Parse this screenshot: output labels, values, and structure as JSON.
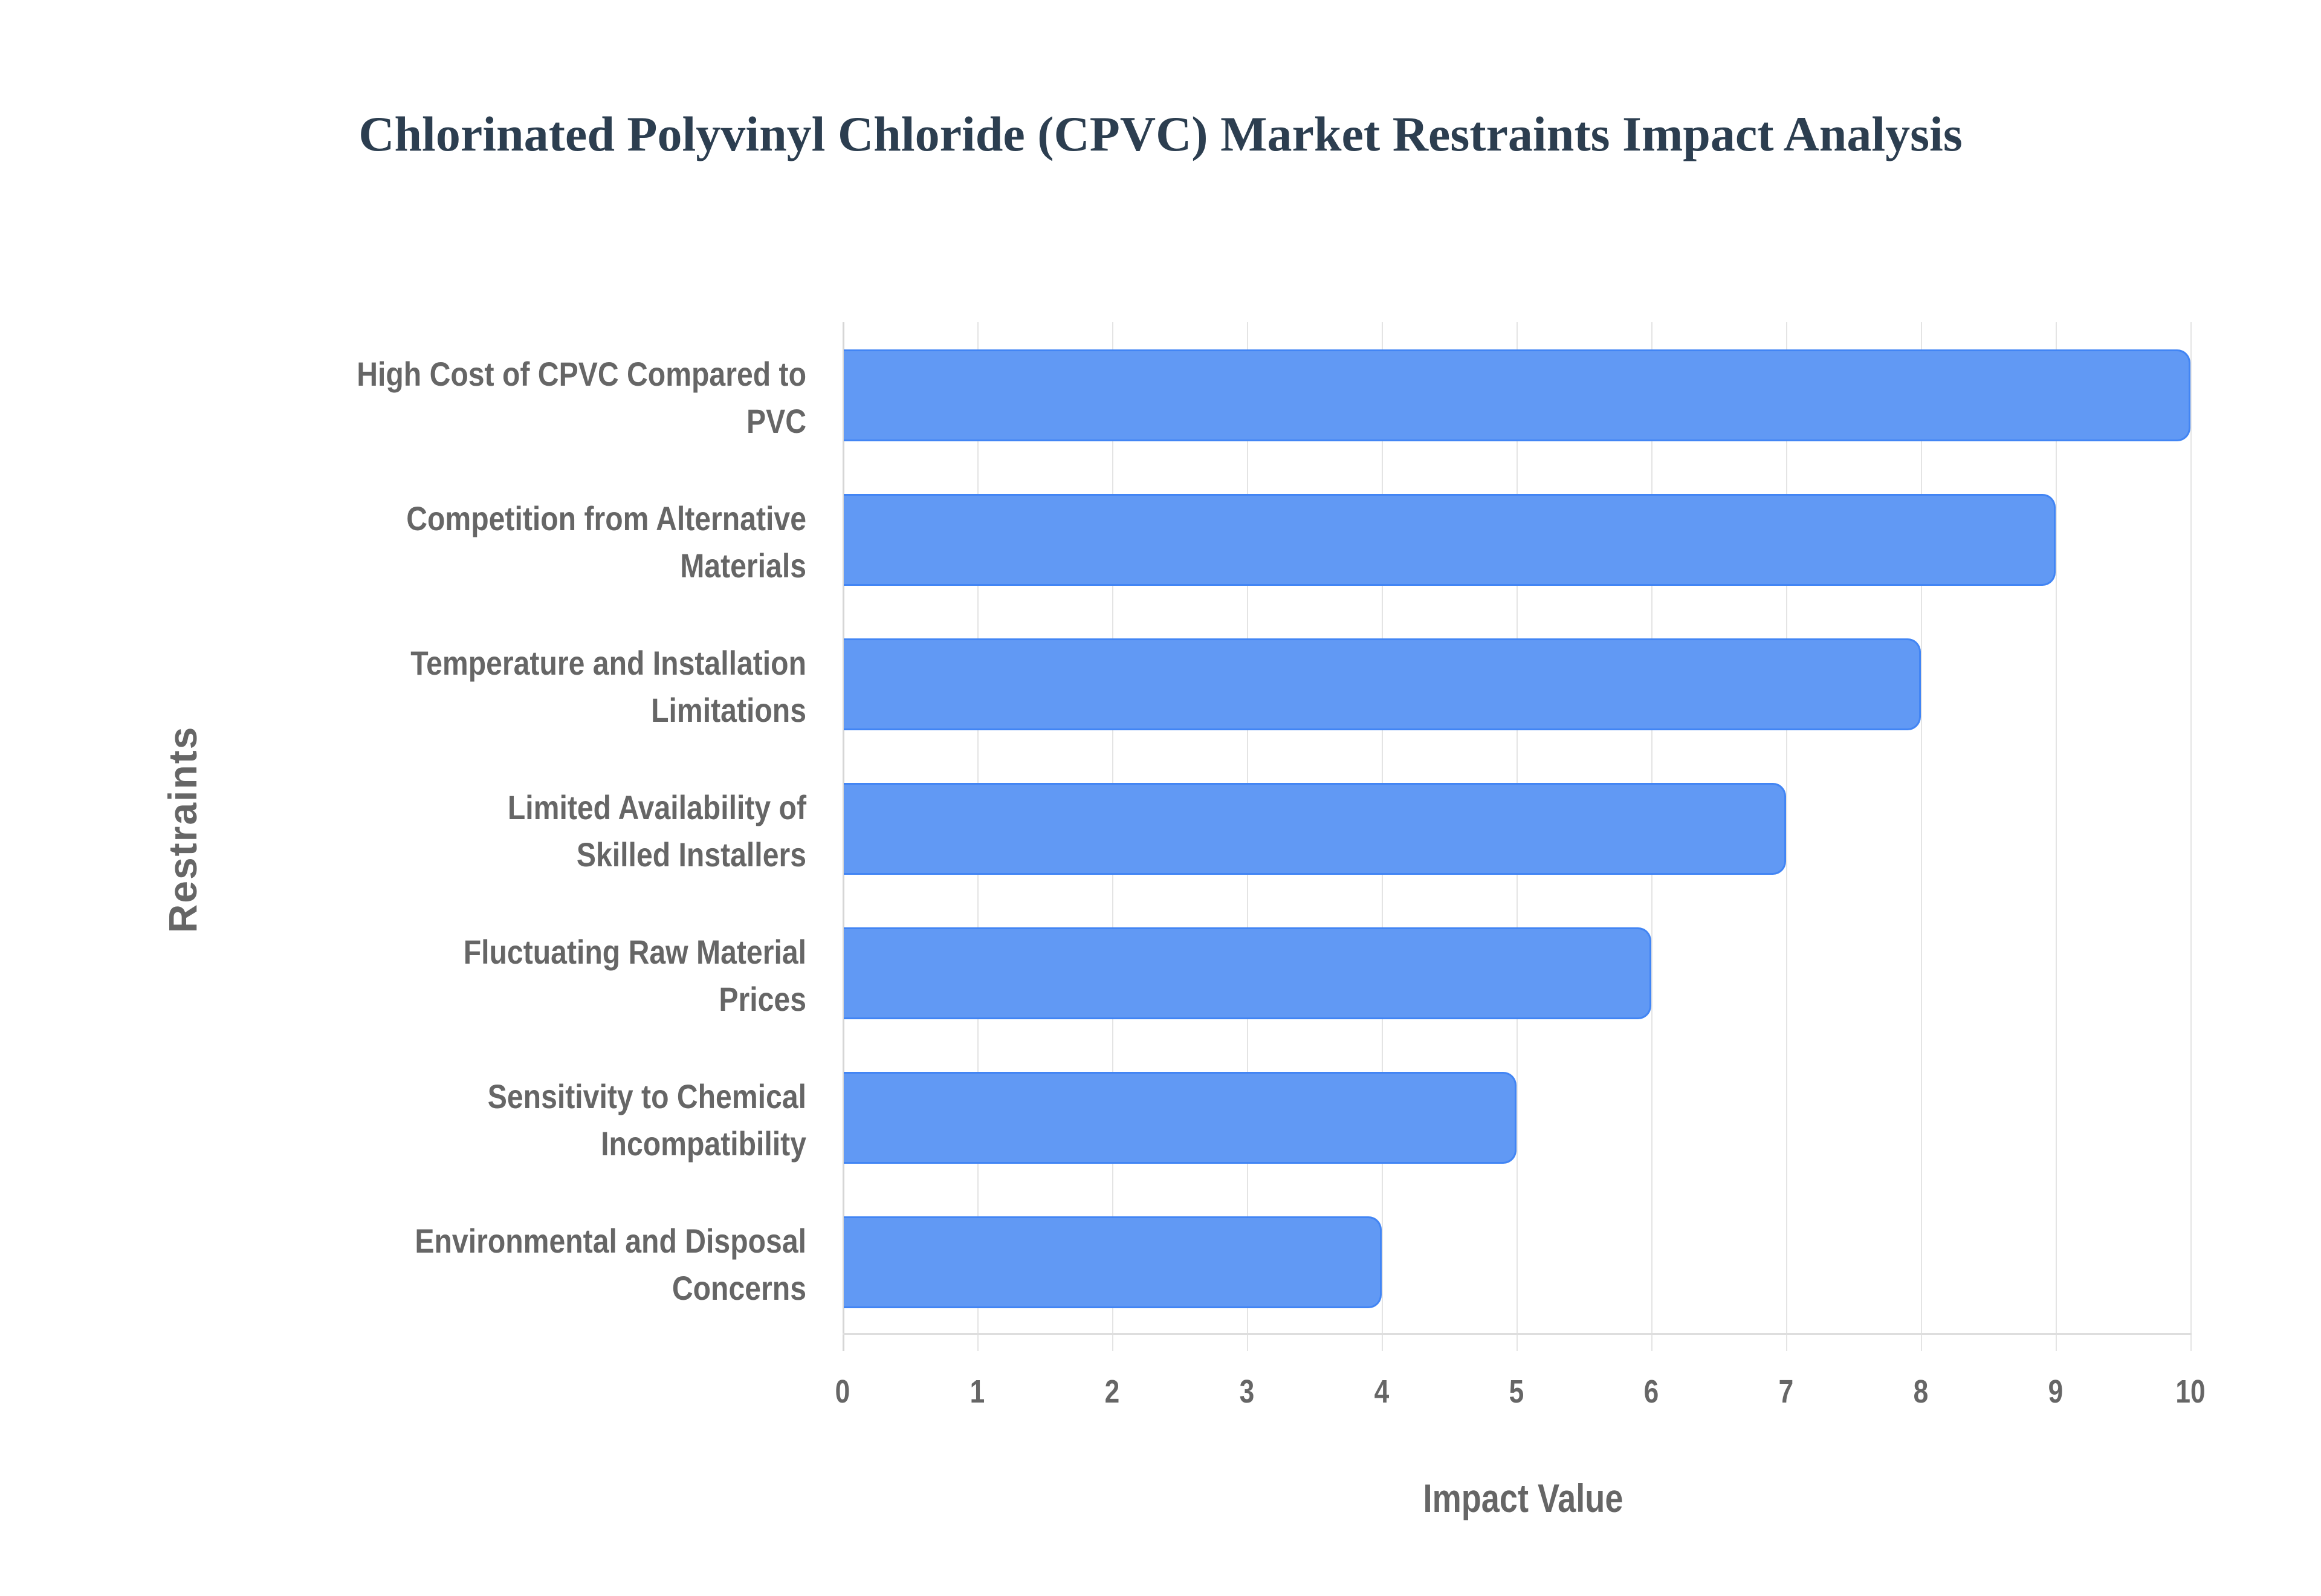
{
  "title": "Chlorinated Polyvinyl Chloride (CPVC) Market Restraints Impact Analysis",
  "axes": {
    "x_title": "Impact Value",
    "y_title": "Restraints",
    "x_ticks": [
      "0",
      "1",
      "2",
      "3",
      "4",
      "5",
      "6",
      "7",
      "8",
      "9",
      "10"
    ]
  },
  "colors": {
    "bar_fill": "#6199f4",
    "bar_border": "#4285f4",
    "title": "#2c3e50",
    "axis_text": "#666666",
    "grid": "#e4e4e4"
  },
  "categories": [
    {
      "line1": "High Cost of CPVC Compared to",
      "line2": "PVC",
      "value": 10
    },
    {
      "line1": "Competition from Alternative",
      "line2": "Materials",
      "value": 9
    },
    {
      "line1": "Temperature and Installation",
      "line2": "Limitations",
      "value": 8
    },
    {
      "line1": "Limited Availability of",
      "line2": "Skilled Installers",
      "value": 7
    },
    {
      "line1": "Fluctuating Raw Material",
      "line2": "Prices",
      "value": 6
    },
    {
      "line1": "Sensitivity to Chemical",
      "line2": "Incompatibility",
      "value": 5
    },
    {
      "line1": "Environmental and Disposal",
      "line2": "Concerns",
      "value": 4
    }
  ],
  "chart_data": {
    "type": "bar",
    "orientation": "horizontal",
    "title": "Chlorinated Polyvinyl Chloride (CPVC) Market Restraints Impact Analysis",
    "categories": [
      "High Cost of CPVC Compared to PVC",
      "Competition from Alternative Materials",
      "Temperature and Installation Limitations",
      "Limited Availability of Skilled Installers",
      "Fluctuating Raw Material Prices",
      "Sensitivity to Chemical Incompatibility",
      "Environmental and Disposal Concerns"
    ],
    "values": [
      10,
      9,
      8,
      7,
      6,
      5,
      4
    ],
    "xlabel": "Impact Value",
    "ylabel": "Restraints",
    "xlim": [
      0,
      10
    ],
    "x_ticks": [
      0,
      1,
      2,
      3,
      4,
      5,
      6,
      7,
      8,
      9,
      10
    ],
    "grid": true,
    "legend": null
  }
}
